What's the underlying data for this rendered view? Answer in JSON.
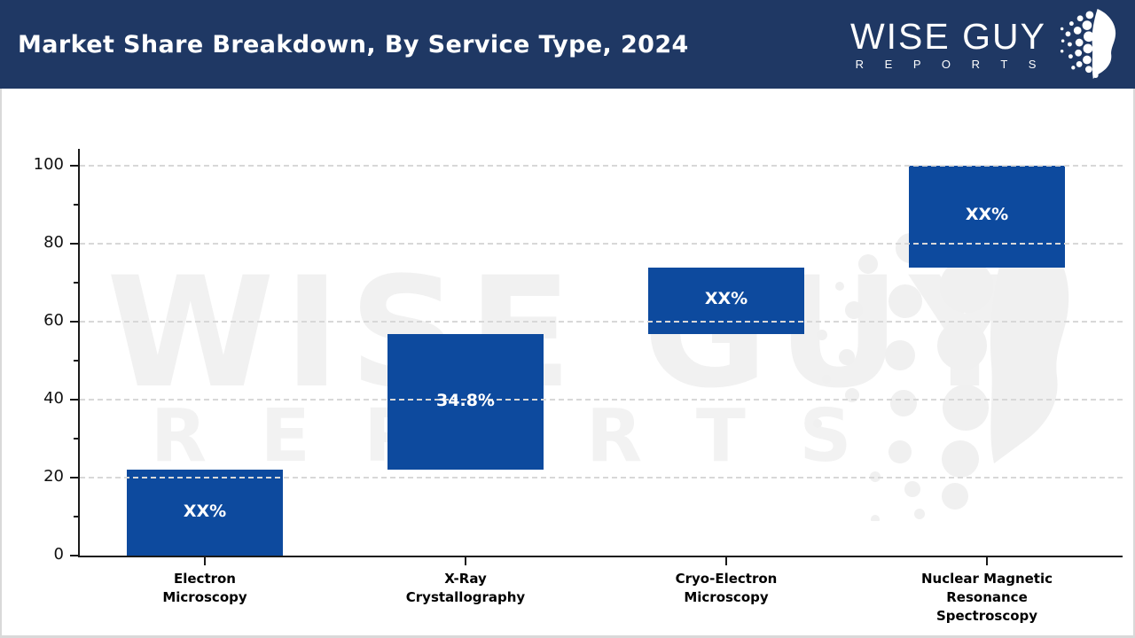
{
  "header": {
    "title": "Market Share Breakdown, By Service Type, 2024",
    "logo": {
      "line1": "WISE GUY",
      "line2": "R E P O R T S"
    }
  },
  "watermark": {
    "line1": "WISE GUY",
    "line2": "R E P O R T S"
  },
  "colors": {
    "header_bg": "#1f3864",
    "bar": "#0d4a9e",
    "bar_label_text": "#ffffff",
    "grid": "#d8d8d8",
    "axis": "#1a1a1a",
    "title_text": "#ffffff",
    "watermark": "#f1f1f1",
    "body_border": "#d9d9d9"
  },
  "chart_data": {
    "type": "bar",
    "subtype": "waterfall",
    "title": "Market Share Breakdown, By Service Type, 2024",
    "categories": [
      "Electron\nMicroscopy",
      "X-Ray\nCrystallography",
      "Cryo-Electron\nMicroscopy",
      "Nuclear Magnetic\nResonance\nSpectroscopy"
    ],
    "segments": [
      {
        "category": "Electron Microscopy",
        "start": 0,
        "end": 22,
        "value_label": "XX%"
      },
      {
        "category": "X-Ray Crystallography",
        "start": 22,
        "end": 56.8,
        "value_label": "34.8%",
        "value": 34.8
      },
      {
        "category": "Cryo-Electron Microscopy",
        "start": 56.8,
        "end": 73.9,
        "value_label": "XX%"
      },
      {
        "category": "Nuclear Magnetic Resonance Spectroscopy",
        "start": 73.9,
        "end": 100,
        "value_label": "XX%"
      }
    ],
    "y_ticks": [
      0,
      20,
      40,
      60,
      80,
      100
    ],
    "y_minor_ticks": [
      10,
      30,
      50,
      70,
      90
    ],
    "ylim": [
      0,
      104
    ],
    "grid": "horizontal-dashed",
    "legend": "none"
  }
}
